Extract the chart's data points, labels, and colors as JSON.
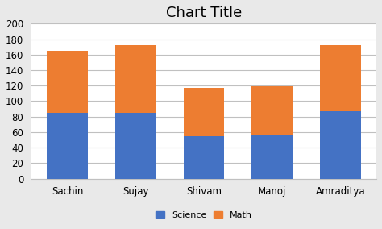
{
  "categories": [
    "Sachin",
    "Sujay",
    "Shivam",
    "Manoj",
    "Amraditya"
  ],
  "science": [
    85,
    85,
    55,
    57,
    87
  ],
  "math": [
    80,
    87,
    62,
    62,
    85
  ],
  "science_color": "#4472C4",
  "math_color": "#ED7D31",
  "title": "Chart Title",
  "title_fontsize": 13,
  "ylim": [
    0,
    200
  ],
  "yticks": [
    0,
    20,
    40,
    60,
    80,
    100,
    120,
    140,
    160,
    180,
    200
  ],
  "legend_labels": [
    "Science",
    "Math"
  ],
  "fig_background_color": "#e9e9e9",
  "plot_background_color": "#ffffff",
  "grid_color": "#c0c0c0",
  "bar_width": 0.6
}
